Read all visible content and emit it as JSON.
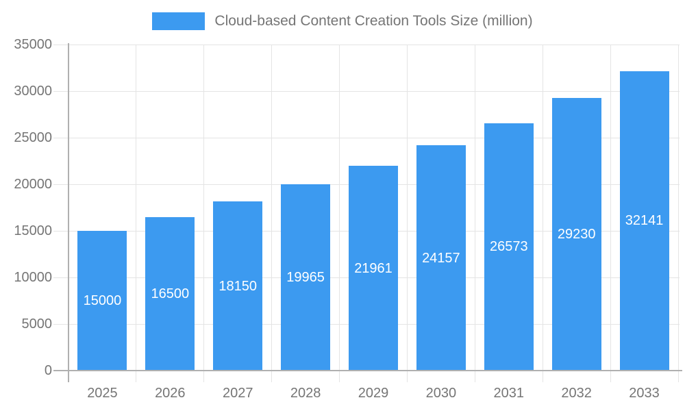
{
  "legend": {
    "label": "Cloud-based Content Creation Tools Size (million)"
  },
  "chart_data": {
    "type": "bar",
    "title": "Cloud-based Content Creation Tools Size (million)",
    "categories": [
      "2025",
      "2026",
      "2027",
      "2028",
      "2029",
      "2030",
      "2031",
      "2032",
      "2033"
    ],
    "values": [
      15000,
      16500,
      18150,
      19965,
      21961,
      24157,
      26573,
      29230,
      32141
    ],
    "xlabel": "",
    "ylabel": "",
    "ylim": [
      0,
      35000
    ],
    "y_ticks": [
      0,
      5000,
      10000,
      15000,
      20000,
      25000,
      30000,
      35000
    ],
    "grid": true,
    "legend_position": "top",
    "value_labels": "inside-center",
    "colors": {
      "bar": "#3c9af0",
      "axis_line": "#b0b0b0",
      "grid_line": "#e4e4e4",
      "tick_text": "#757575",
      "value_label_text": "#ffffff"
    }
  }
}
